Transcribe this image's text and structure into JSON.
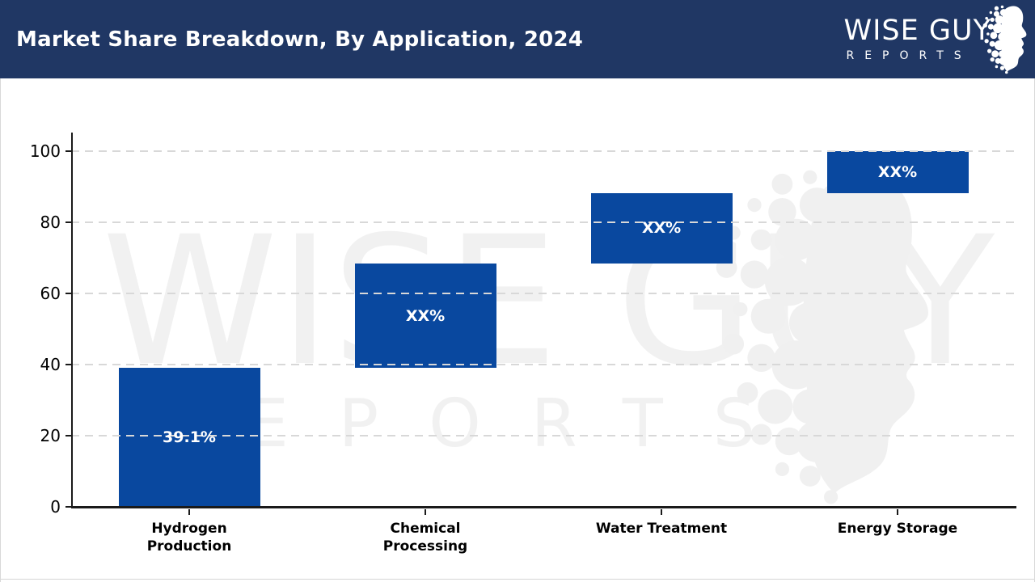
{
  "header": {
    "title": "Market Share Breakdown, By Application, 2024",
    "logo": {
      "line1": "WISE GUY",
      "line2": "REPORTS"
    }
  },
  "watermark": {
    "line1": "WISE GUY",
    "line2": "REPORTS"
  },
  "chart_data": {
    "type": "bar",
    "subtype": "waterfall",
    "title": "Market Share Breakdown, By Application, 2024",
    "categories": [
      "Hydrogen Production",
      "Chemical Processing",
      "Water Treatment",
      "Energy Storage"
    ],
    "tick_labels": [
      "Hydrogen\nProduction",
      "Chemical\nProcessing",
      "Water Treatment",
      "Energy Storage"
    ],
    "segments": [
      {
        "category": "Hydrogen Production",
        "label": "39.1%",
        "start": 0,
        "end": 39.1
      },
      {
        "category": "Chemical Processing",
        "label": "XX%",
        "start": 39.1,
        "end": 68.4
      },
      {
        "category": "Water Treatment",
        "label": "XX%",
        "start": 68.4,
        "end": 88.2
      },
      {
        "category": "Energy Storage",
        "label": "XX%",
        "start": 88.2,
        "end": 100
      }
    ],
    "ylim": [
      0,
      100
    ],
    "yticks": [
      0,
      20,
      40,
      60,
      80,
      100
    ],
    "grid": "horizontal-dashed",
    "legend": "none",
    "bar_color": "#09489f",
    "bar_label_color": "#ffffff"
  },
  "colors": {
    "header_bg": "#203764",
    "bar": "#09489f",
    "gridline": "#d8d8d8",
    "axis": "#1a1a1a",
    "watermark": "#f1f1f1",
    "card_border": "#d4d4d4"
  }
}
